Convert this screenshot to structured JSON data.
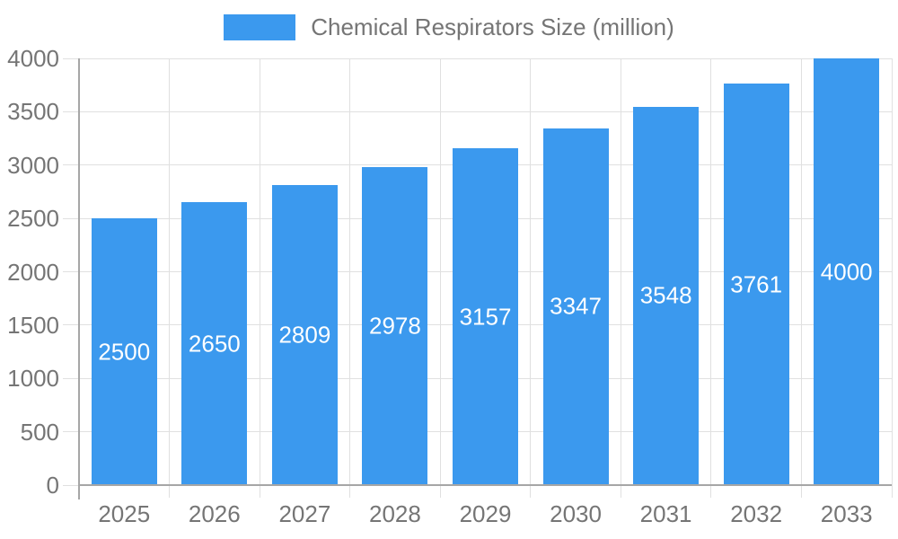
{
  "chart_data": {
    "type": "bar",
    "title": "Chemical Respirators Size (million)",
    "categories": [
      "2025",
      "2026",
      "2027",
      "2028",
      "2029",
      "2030",
      "2031",
      "2032",
      "2033"
    ],
    "series": [
      {
        "name": "Chemical Respirators Size (million)",
        "values": [
          2500,
          2650,
          2809,
          2978,
          3157,
          3347,
          3548,
          3761,
          4000
        ]
      }
    ],
    "xlabel": "",
    "ylabel": "",
    "ylim": [
      0,
      4000
    ],
    "yticks": [
      0,
      500,
      1000,
      1500,
      2000,
      2500,
      3000,
      3500,
      4000
    ],
    "grid": "both",
    "legend_position": "top-center",
    "value_labels_position": "inside-center",
    "style": {
      "bar_color": "#3B99EE",
      "grid_color": "#E0E0E0",
      "axis_color": "#A6A6A6",
      "text_color": "#757575",
      "value_label_color": "#FFFFFF",
      "background_color": "#FFFFFF"
    }
  }
}
